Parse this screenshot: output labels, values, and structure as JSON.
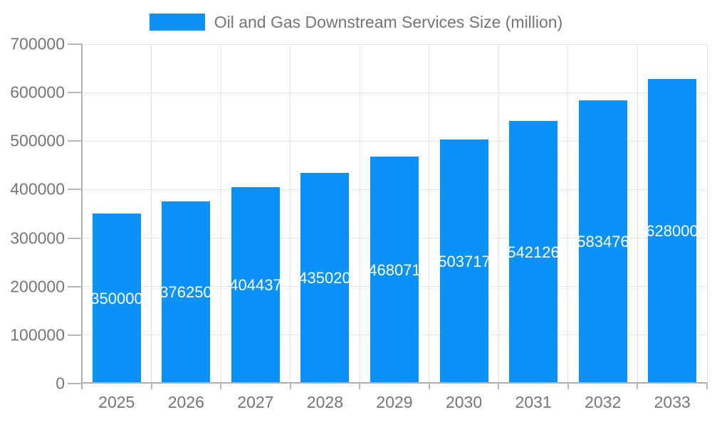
{
  "chart_data": {
    "type": "bar",
    "title": "Oil and Gas Downstream Services Size (million)",
    "categories": [
      "2025",
      "2026",
      "2027",
      "2028",
      "2029",
      "2030",
      "2031",
      "2032",
      "2033"
    ],
    "values": [
      350000,
      376250,
      404437,
      435020,
      468071,
      503717,
      542126,
      583476,
      628000
    ],
    "value_labels": [
      "350000",
      "376250",
      "404437",
      "435020",
      "468071",
      "503717",
      "542126",
      "583476",
      "628000"
    ],
    "xlabel": "",
    "ylabel": "",
    "ylim": [
      0,
      700000
    ],
    "ytick_step": 100000,
    "yticks": [
      0,
      100000,
      200000,
      300000,
      400000,
      500000,
      600000,
      700000
    ],
    "grid": true,
    "legend_position": "top"
  },
  "colors": {
    "bar": "#0b92f8",
    "bar_value_text": "#ffffff",
    "grid": "#e4e4e4",
    "axis": "#b0b0b0",
    "tick": "#b6b6b6",
    "label_text": "#757575",
    "background": "#ffffff"
  }
}
